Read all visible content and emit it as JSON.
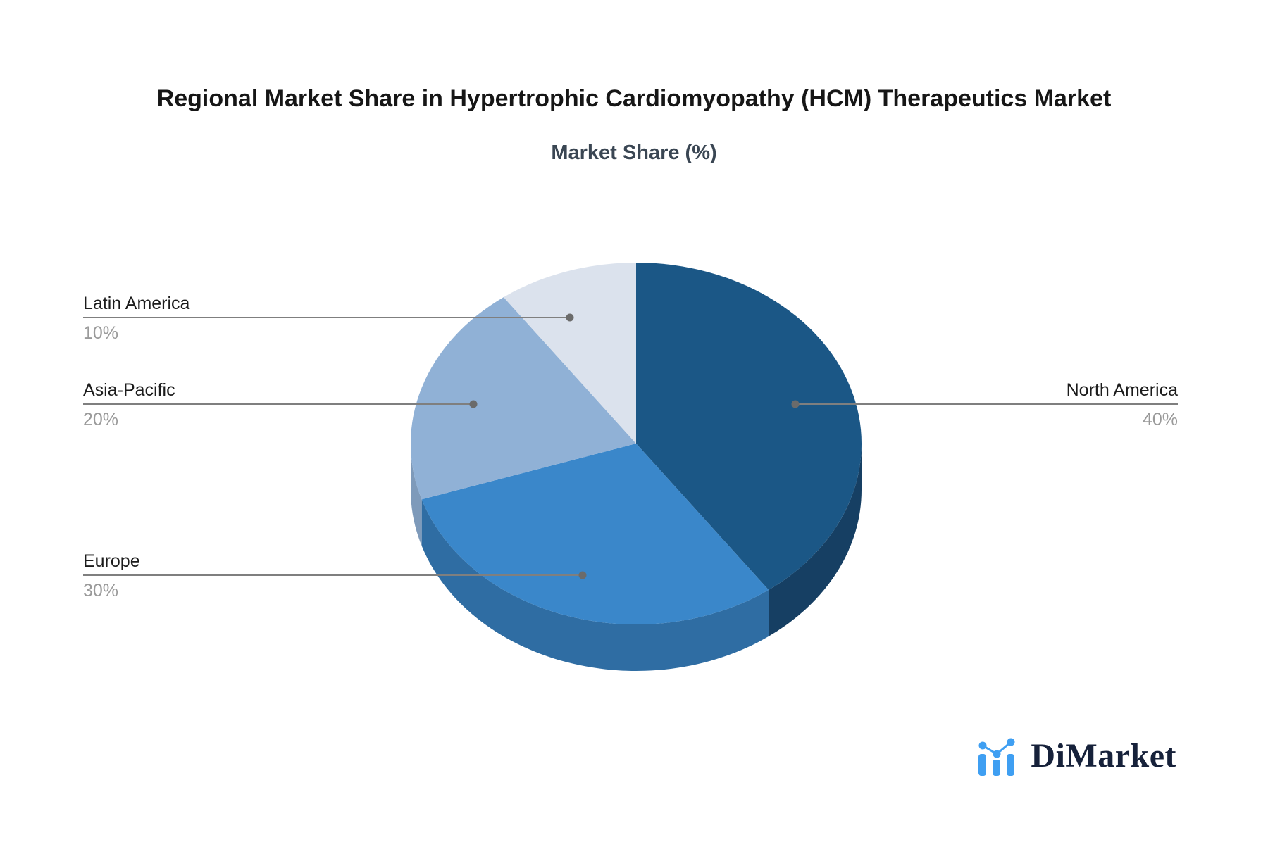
{
  "chart_data": {
    "type": "pie",
    "title": "Regional Market Share in Hypertrophic Cardiomyopathy (HCM) Therapeutics Market",
    "subtitle": "Market Share (%)",
    "unit": "%",
    "start_angle_deg": 90,
    "direction": "clockwise",
    "legend_position": "none",
    "effect": "3d-depth",
    "slices": [
      {
        "label": "North America",
        "value": 40,
        "display": "40%",
        "color": "#1b5786",
        "side_color": "#163f63"
      },
      {
        "label": "Europe",
        "value": 30,
        "display": "30%",
        "color": "#3a87ca",
        "side_color": "#2f6da3"
      },
      {
        "label": "Asia-Pacific",
        "value": 20,
        "display": "20%",
        "color": "#90b1d6",
        "side_color": "#7e9aba"
      },
      {
        "label": "Latin America",
        "value": 10,
        "display": "10%",
        "color": "#dbe2ed",
        "side_color": "#c2ccd9"
      }
    ],
    "label_style": {
      "name_color": "#1c1c1c",
      "value_color": "#9a9a9a",
      "leader_line_color": "#7f7f7f",
      "leader_dot_color": "#6b6b6b"
    }
  },
  "branding": {
    "logo_text": "DiMarket",
    "logo_text_color": "#16213a",
    "logo_icon": "bar-chart-with-dots",
    "logo_icon_color": "#3f9ff2"
  }
}
